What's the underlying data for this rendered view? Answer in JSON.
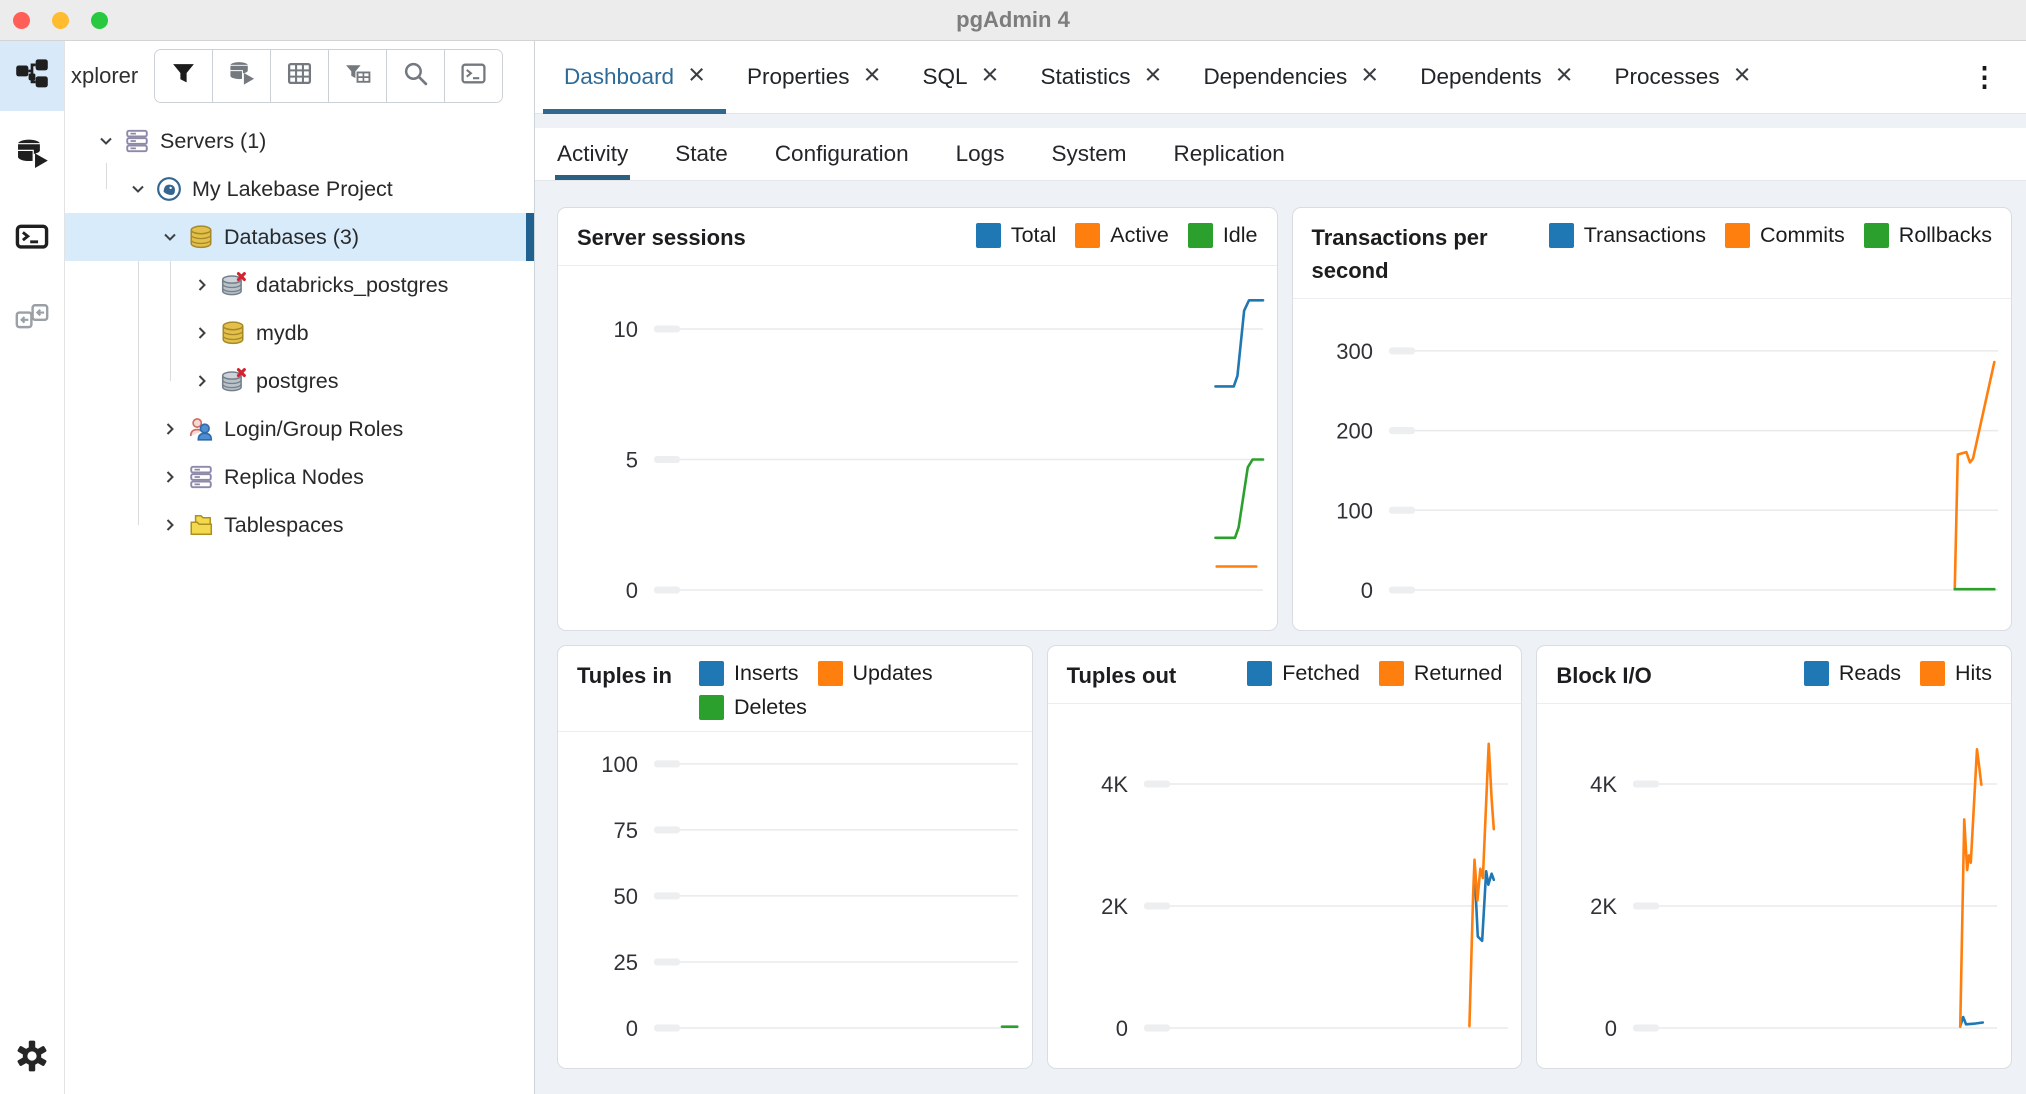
{
  "window": {
    "title": "pgAdmin 4",
    "traffic_colors": [
      "#ff5f57",
      "#febc2e",
      "#28c840"
    ]
  },
  "activity_rail": {
    "items": [
      {
        "icon": "object-explorer-icon",
        "active": true
      },
      {
        "icon": "query-tool-icon",
        "active": false
      },
      {
        "icon": "psql-tool-icon",
        "active": false
      },
      {
        "icon": "schema-diff-icon",
        "active": false
      },
      {
        "icon": "settings-gear-icon",
        "active": false
      }
    ]
  },
  "object_explorer": {
    "panel_title": "xplorer",
    "toolbar": [
      {
        "icon": "filter-icon"
      },
      {
        "icon": "query-tool-icon"
      },
      {
        "icon": "view-data-icon"
      },
      {
        "icon": "filtered-rows-icon"
      },
      {
        "icon": "search-icon"
      },
      {
        "icon": "psql-terminal-icon"
      }
    ],
    "tree": [
      {
        "label": "Servers (1)",
        "level": 0,
        "expanded": true,
        "icon": "server-group-icon",
        "selected": false
      },
      {
        "label": "My Lakebase Project",
        "level": 1,
        "expanded": true,
        "icon": "postgres-server-icon",
        "selected": false
      },
      {
        "label": "Databases (3)",
        "level": 2,
        "expanded": true,
        "icon": "database-icon",
        "selected": true
      },
      {
        "label": "databricks_postgres",
        "level": 3,
        "expanded": false,
        "icon": "database-disconnected-icon",
        "selected": false
      },
      {
        "label": "mydb",
        "level": 3,
        "expanded": false,
        "icon": "database-icon",
        "selected": false
      },
      {
        "label": "postgres",
        "level": 3,
        "expanded": false,
        "icon": "database-disconnected-icon",
        "selected": false
      },
      {
        "label": "Login/Group Roles",
        "level": 2,
        "expanded": false,
        "icon": "login-group-roles-icon",
        "selected": false
      },
      {
        "label": "Replica Nodes",
        "level": 2,
        "expanded": false,
        "icon": "replica-nodes-icon",
        "selected": false
      },
      {
        "label": "Tablespaces",
        "level": 2,
        "expanded": false,
        "icon": "tablespaces-icon",
        "selected": false
      }
    ]
  },
  "tabs": {
    "items": [
      {
        "label": "Dashboard",
        "active": true
      },
      {
        "label": "Properties",
        "active": false
      },
      {
        "label": "SQL",
        "active": false
      },
      {
        "label": "Statistics",
        "active": false
      },
      {
        "label": "Dependencies",
        "active": false
      },
      {
        "label": "Dependents",
        "active": false
      },
      {
        "label": "Processes",
        "active": false
      }
    ],
    "close_glyph": "×",
    "overflow_glyph": "⋮"
  },
  "subtabs": {
    "items": [
      {
        "label": "Activity",
        "active": true
      },
      {
        "label": "State",
        "active": false
      },
      {
        "label": "Configuration",
        "active": false
      },
      {
        "label": "Logs",
        "active": false
      },
      {
        "label": "System",
        "active": false
      },
      {
        "label": "Replication",
        "active": false
      }
    ]
  },
  "colors": {
    "series_blue": "#1f77b4",
    "series_orange": "#ff7f0e",
    "series_green": "#2ca02c",
    "active_tab_blue": "#2e6b99",
    "selection_bg": "#d7ebfa"
  },
  "chart_data": [
    {
      "name": "server-sessions",
      "type": "line",
      "title": "Server sessions",
      "ylim": [
        0,
        11.8
      ],
      "yticks": [
        {
          "v": 0,
          "label": "0"
        },
        {
          "v": 5,
          "label": "5"
        },
        {
          "v": 10,
          "label": "10"
        }
      ],
      "x_range_pct": [
        0,
        100
      ],
      "grid": true,
      "legend_position": "top-right",
      "legend": [
        {
          "label": "Total",
          "color": "#1f77b4"
        },
        {
          "label": "Active",
          "color": "#ff7f0e"
        },
        {
          "label": "Idle",
          "color": "#2ca02c"
        }
      ],
      "series": [
        {
          "name": "Total",
          "color": "#1f77b4",
          "points": [
            [
              92.2,
              7.8
            ],
            [
              95.2,
              7.8
            ],
            [
              95.8,
              8.2
            ],
            [
              96.9,
              10.7
            ],
            [
              97.7,
              11.1
            ],
            [
              100,
              11.1
            ]
          ]
        },
        {
          "name": "Idle",
          "color": "#2ca02c",
          "points": [
            [
              92.2,
              2.0
            ],
            [
              95.4,
              2.0
            ],
            [
              96.0,
              2.4
            ],
            [
              97.5,
              4.7
            ],
            [
              98.3,
              5.0
            ],
            [
              100,
              5.0
            ]
          ]
        },
        {
          "name": "Active",
          "color": "#ff7f0e",
          "points": [
            [
              92.4,
              0.9
            ],
            [
              98.9,
              0.9
            ]
          ]
        }
      ]
    },
    {
      "name": "transactions-per-second",
      "type": "line",
      "title": "Transactions per second",
      "ylim": [
        0,
        345
      ],
      "yticks": [
        {
          "v": 0,
          "label": "0"
        },
        {
          "v": 100,
          "label": "100"
        },
        {
          "v": 200,
          "label": "200"
        },
        {
          "v": 300,
          "label": "300"
        }
      ],
      "x_range_pct": [
        0,
        100
      ],
      "grid": true,
      "legend_position": "top-right",
      "legend": [
        {
          "label": "Transactions",
          "color": "#1f77b4"
        },
        {
          "label": "Commits",
          "color": "#ff7f0e"
        },
        {
          "label": "Rollbacks",
          "color": "#2ca02c"
        }
      ],
      "series": [
        {
          "name": "Transactions",
          "color": "#1f77b4",
          "visible": false,
          "points": []
        },
        {
          "name": "Commits",
          "color": "#ff7f0e",
          "points": [
            [
              92.9,
              2
            ],
            [
              93.4,
              170
            ],
            [
              94.8,
              173
            ],
            [
              95.4,
              160
            ],
            [
              95.9,
              165
            ],
            [
              99.4,
              286
            ]
          ]
        },
        {
          "name": "Rollbacks",
          "color": "#2ca02c",
          "points": [
            [
              92.9,
              1
            ],
            [
              99.4,
              1
            ]
          ]
        }
      ]
    },
    {
      "name": "tuples-in",
      "type": "line",
      "title": "Tuples in",
      "ylim": [
        0,
        106
      ],
      "yticks": [
        {
          "v": 0,
          "label": "0"
        },
        {
          "v": 25,
          "label": "25"
        },
        {
          "v": 50,
          "label": "50"
        },
        {
          "v": 75,
          "label": "75"
        },
        {
          "v": 100,
          "label": "100"
        }
      ],
      "x_range_pct": [
        0,
        100
      ],
      "grid": true,
      "legend_position": "top-right",
      "legend": [
        {
          "label": "Inserts",
          "color": "#1f77b4"
        },
        {
          "label": "Updates",
          "color": "#ff7f0e"
        },
        {
          "label": "Deletes",
          "color": "#2ca02c"
        }
      ],
      "series": [
        {
          "name": "Inserts",
          "color": "#1f77b4",
          "visible": false,
          "points": []
        },
        {
          "name": "Updates",
          "color": "#ff7f0e",
          "visible": false,
          "points": []
        },
        {
          "name": "Deletes",
          "color": "#2ca02c",
          "points": [
            [
              95.6,
              0.5
            ],
            [
              99.8,
              0.5
            ]
          ]
        }
      ]
    },
    {
      "name": "tuples-out",
      "type": "line",
      "title": "Tuples out",
      "ylim": [
        0,
        5050
      ],
      "yticks": [
        {
          "v": 0,
          "label": "0"
        },
        {
          "v": 2000,
          "label": "2K"
        },
        {
          "v": 4000,
          "label": "4K"
        }
      ],
      "x_range_pct": [
        0,
        100
      ],
      "grid": true,
      "legend_position": "top-right",
      "legend": [
        {
          "label": "Fetched",
          "color": "#1f77b4"
        },
        {
          "label": "Returned",
          "color": "#ff7f0e"
        }
      ],
      "series": [
        {
          "name": "Fetched",
          "color": "#1f77b4",
          "points": [
            [
              90.8,
              2600
            ],
            [
              91.7,
              1500
            ],
            [
              92.9,
              1430
            ],
            [
              94.0,
              2570
            ],
            [
              94.6,
              2350
            ],
            [
              95.5,
              2530
            ],
            [
              96.1,
              2430
            ]
          ]
        },
        {
          "name": "Returned",
          "color": "#ff7f0e",
          "points": [
            [
              89.4,
              30
            ],
            [
              90.4,
              2150
            ],
            [
              90.8,
              2760
            ],
            [
              91.6,
              2090
            ],
            [
              92.4,
              2610
            ],
            [
              93.1,
              2460
            ],
            [
              94.7,
              4660
            ],
            [
              95.5,
              3760
            ],
            [
              96.1,
              3260
            ]
          ]
        }
      ]
    },
    {
      "name": "block-io",
      "type": "line",
      "title": "Block I/O",
      "ylim": [
        0,
        5050
      ],
      "yticks": [
        {
          "v": 0,
          "label": "0"
        },
        {
          "v": 2000,
          "label": "2K"
        },
        {
          "v": 4000,
          "label": "4K"
        }
      ],
      "x_range_pct": [
        0,
        100
      ],
      "grid": true,
      "legend_position": "top-right",
      "legend": [
        {
          "label": "Reads",
          "color": "#1f77b4"
        },
        {
          "label": "Hits",
          "color": "#ff7f0e"
        }
      ],
      "series": [
        {
          "name": "Reads",
          "color": "#1f77b4",
          "points": [
            [
              89.9,
              30
            ],
            [
              90.7,
              180
            ],
            [
              91.5,
              60
            ],
            [
              93.6,
              70
            ],
            [
              96.1,
              90
            ]
          ]
        },
        {
          "name": "Hits",
          "color": "#ff7f0e",
          "points": [
            [
              89.9,
              20
            ],
            [
              91.0,
              3420
            ],
            [
              91.8,
              2590
            ],
            [
              92.3,
              2830
            ],
            [
              92.8,
              2710
            ],
            [
              94.5,
              4570
            ],
            [
              95.1,
              4290
            ],
            [
              95.7,
              3990
            ]
          ]
        }
      ]
    }
  ]
}
